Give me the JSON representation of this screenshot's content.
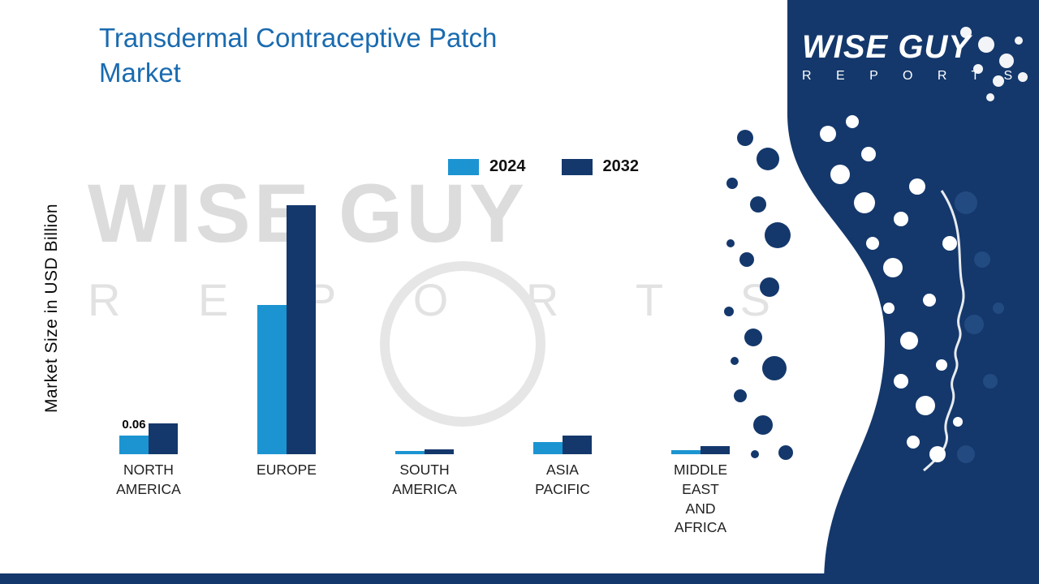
{
  "header": {
    "title": "Transdermal Contraceptive Patch Market"
  },
  "logo": {
    "brand": "WISE GUY",
    "sub": "R E P O R T S"
  },
  "watermark": {
    "brand": "WISE GUY",
    "sub": "R E P O R T S"
  },
  "colors": {
    "series_2024": "#1b94d1",
    "series_2032": "#14386c",
    "title_blue": "#1a6bb0",
    "panel_navy": "#14386c",
    "watermark_gray": "#dcdcdc",
    "footer_navy": "#14386c"
  },
  "chart_data": {
    "type": "bar",
    "title": "Transdermal Contraceptive Patch Market",
    "xlabel": "",
    "ylabel": "Market Size in USD Billion",
    "categories": [
      "NORTH AMERICA",
      "EUROPE",
      "SOUTH AMERICA",
      "ASIA PACIFIC",
      "MIDDLE EAST AND AFRICA"
    ],
    "series": [
      {
        "name": "2024",
        "color": "#1b94d1",
        "values": [
          0.06,
          0.48,
          0.01,
          0.04,
          0.012
        ],
        "labels": [
          "0.06",
          "",
          "",
          "",
          ""
        ]
      },
      {
        "name": "2032",
        "color": "#14386c",
        "values": [
          0.1,
          0.8,
          0.015,
          0.06,
          0.025
        ],
        "labels": [
          "",
          "",
          "",
          "",
          ""
        ]
      }
    ],
    "ylim": [
      0,
      0.8
    ],
    "grid": false,
    "legend_position": "top-center",
    "units": "USD Billion"
  }
}
